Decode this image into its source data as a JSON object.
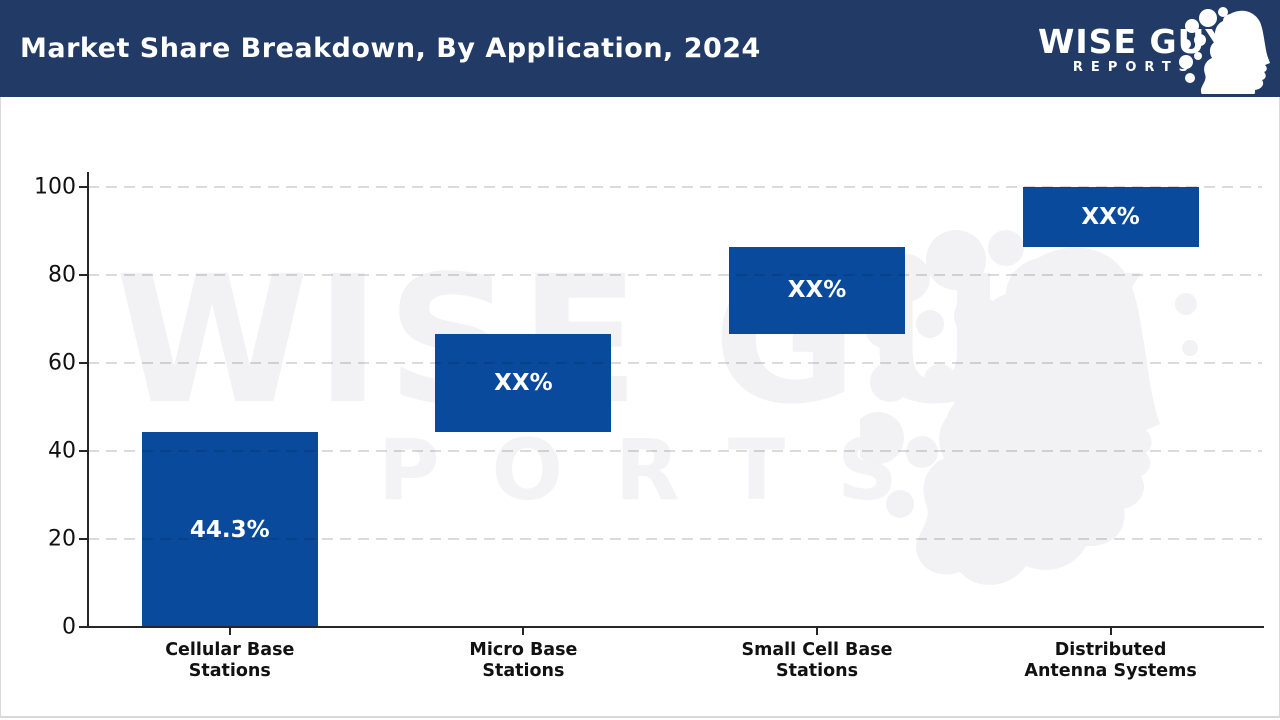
{
  "header": {
    "title": "Market Share Breakdown, By Application, 2024",
    "logo": {
      "name": "WISE GUY",
      "subtitle": "REPORTS"
    }
  },
  "watermark": {
    "line1": "WISE GUY",
    "line2": "PORTS"
  },
  "chart_data": {
    "type": "bar",
    "variant": "waterfall",
    "title": "Market Share Breakdown, By Application, 2024",
    "categories": [
      [
        "Cellular Base",
        "Stations"
      ],
      [
        "Micro Base",
        "Stations"
      ],
      [
        "Small Cell Base",
        "Stations"
      ],
      [
        "Distributed",
        "Antenna Systems"
      ]
    ],
    "values": [
      44.3,
      22.3,
      19.8,
      13.6
    ],
    "cumulative_start": [
      0,
      44.3,
      66.6,
      86.4
    ],
    "cumulative_end": [
      44.3,
      66.6,
      86.4,
      100
    ],
    "bar_labels": [
      "44.3%",
      "XX%",
      "XX%",
      "XX%"
    ],
    "ylim": [
      0,
      100
    ],
    "yticks": [
      0,
      20,
      40,
      60,
      80,
      100
    ],
    "grid": {
      "horizontal": true,
      "style": "dashed"
    },
    "legend": null,
    "colors": {
      "bar": "#0A4A9D",
      "bar_label": "#FFFFFF",
      "axis": "#262626",
      "tick_label": "#111111"
    }
  }
}
